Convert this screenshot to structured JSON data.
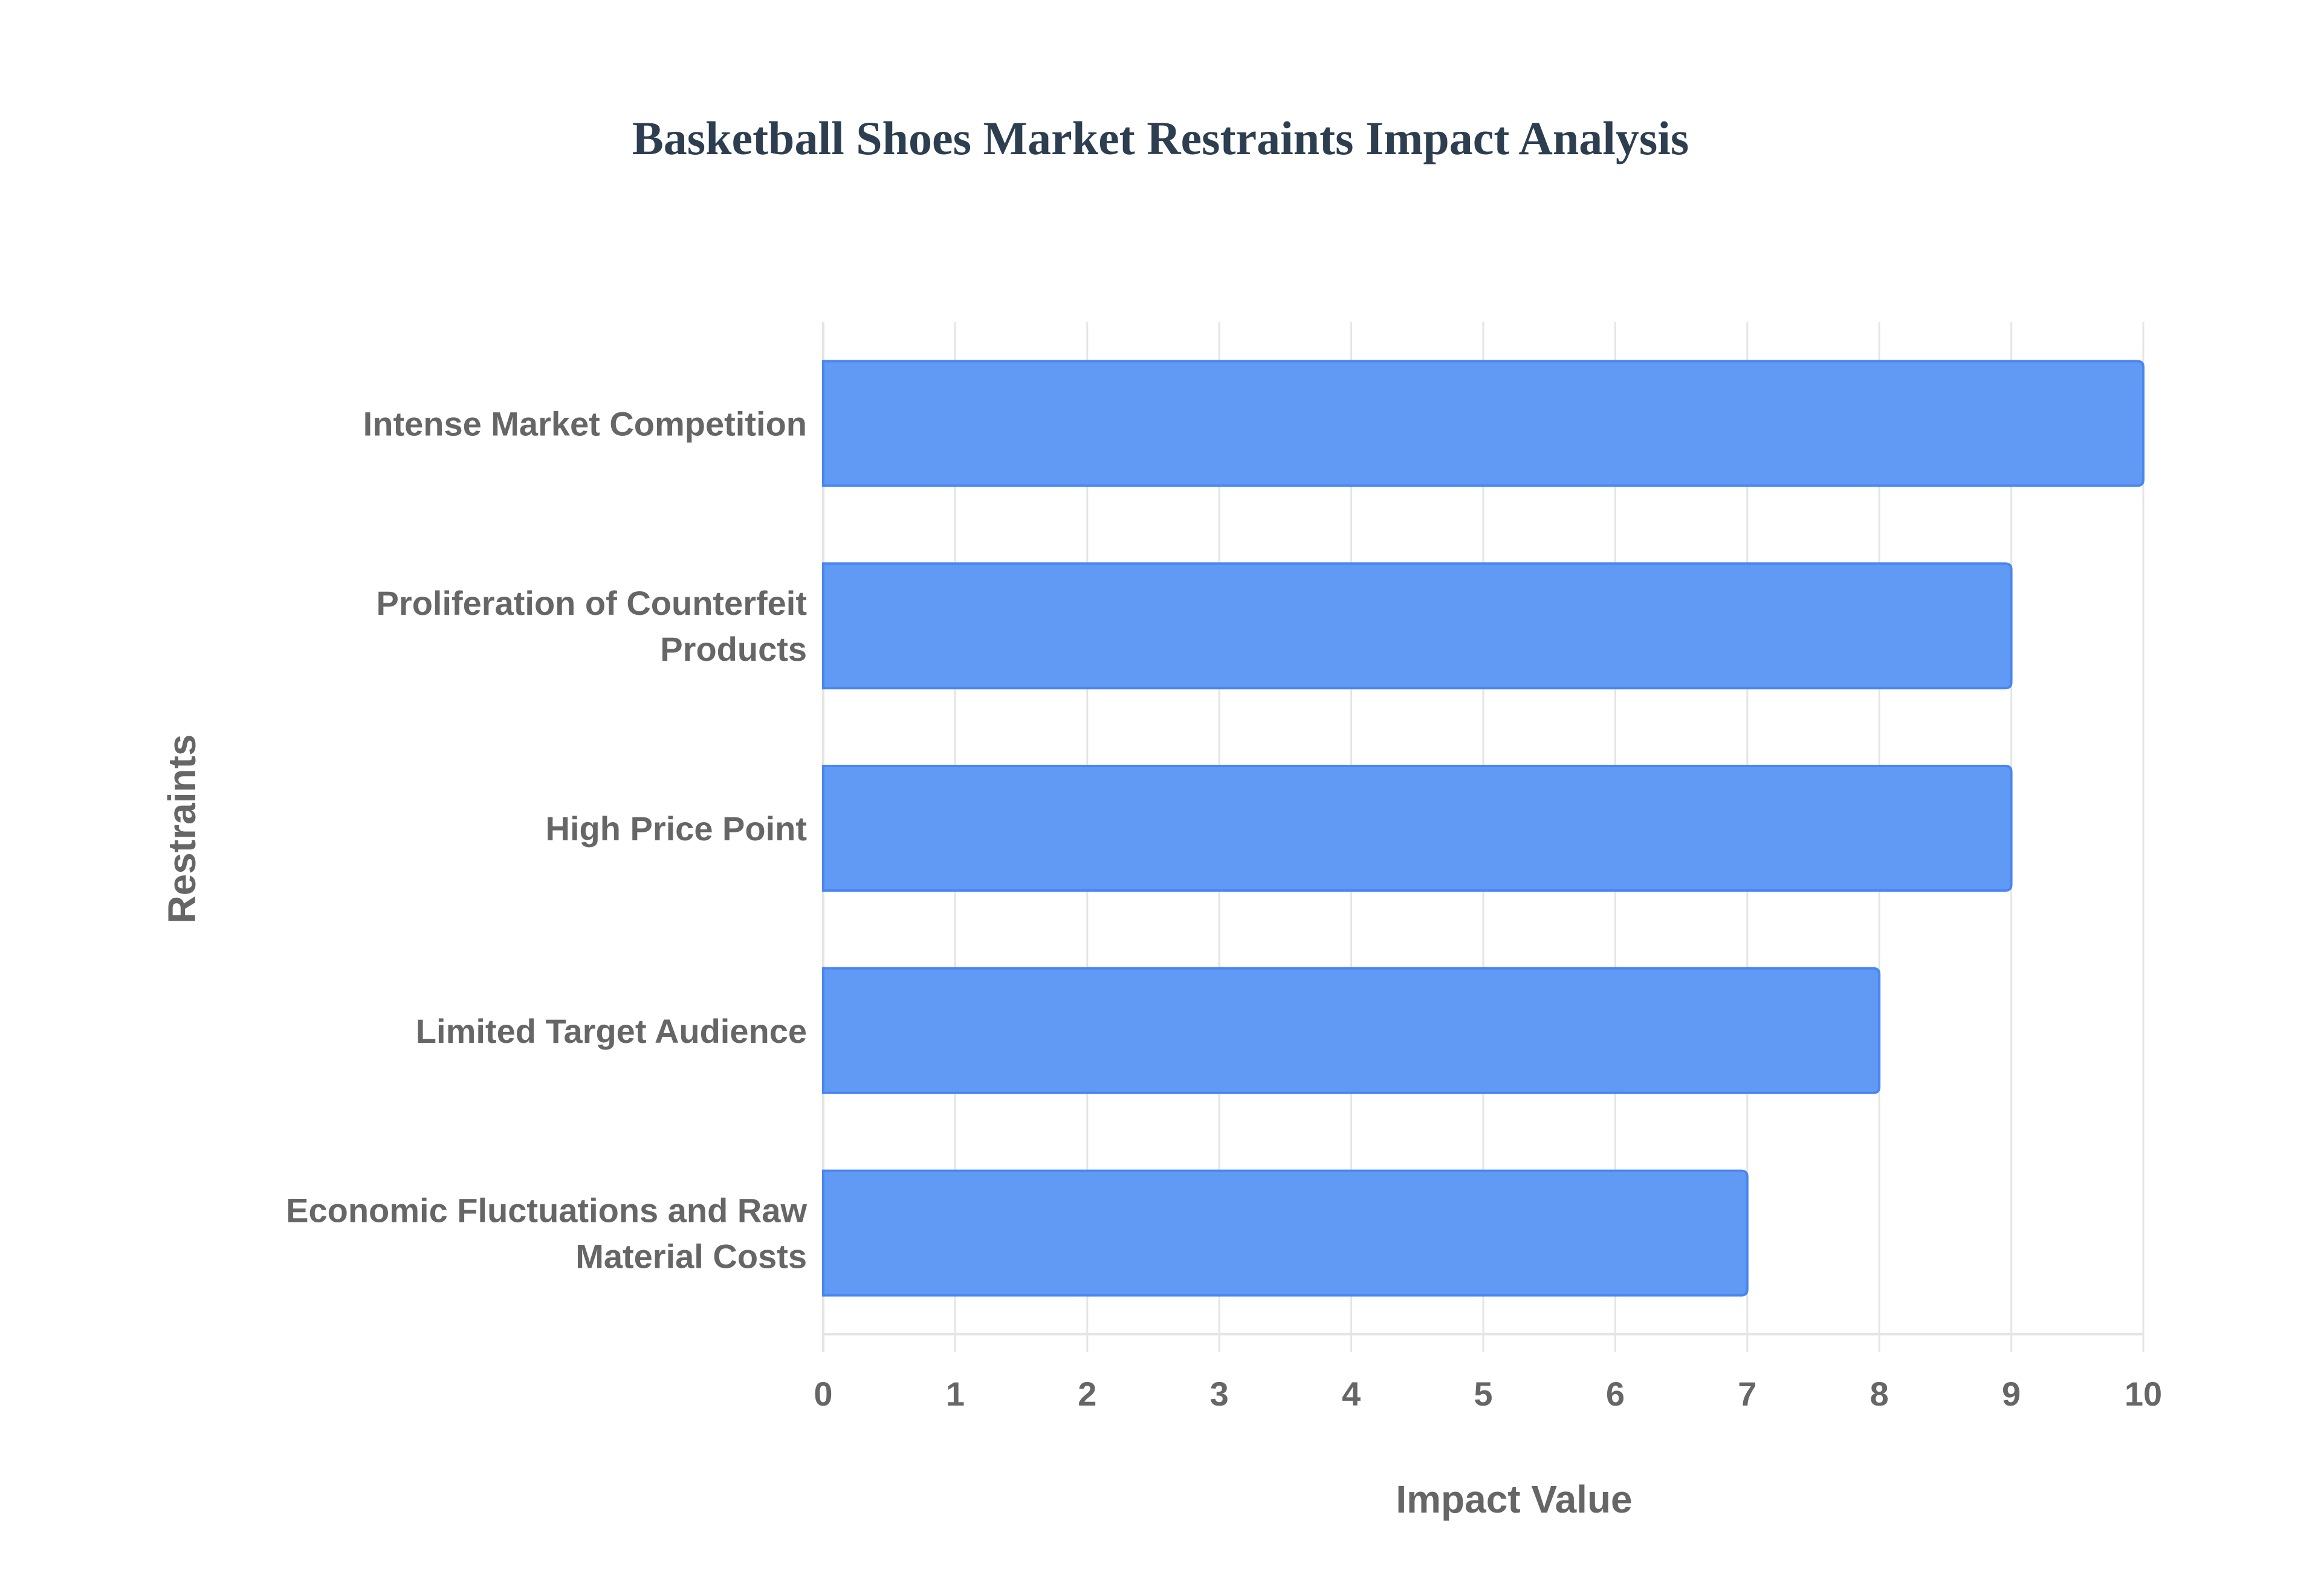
{
  "chart_data": {
    "type": "bar",
    "orientation": "horizontal",
    "title": "Basketball Shoes Market Restraints Impact Analysis",
    "xlabel": "Impact Value",
    "ylabel": "Restraints",
    "categories": [
      [
        "Intense Market Competition"
      ],
      [
        "Proliferation of Counterfeit",
        "Products"
      ],
      [
        "High Price Point"
      ],
      [
        "Limited Target Audience"
      ],
      [
        "Economic Fluctuations and Raw",
        "Material Costs"
      ]
    ],
    "values": [
      10,
      9,
      9,
      8,
      7
    ],
    "xlim": [
      0,
      10
    ],
    "xticks": [
      "0",
      "1",
      "2",
      "3",
      "4",
      "5",
      "6",
      "7",
      "8",
      "9",
      "10"
    ],
    "grid": true,
    "legend": "none",
    "colors": {
      "bar": "#619af5",
      "bar_border": "#4a86ef",
      "grid": "#e5e5e5",
      "title": "#2c3e50",
      "text": "#666666"
    }
  }
}
